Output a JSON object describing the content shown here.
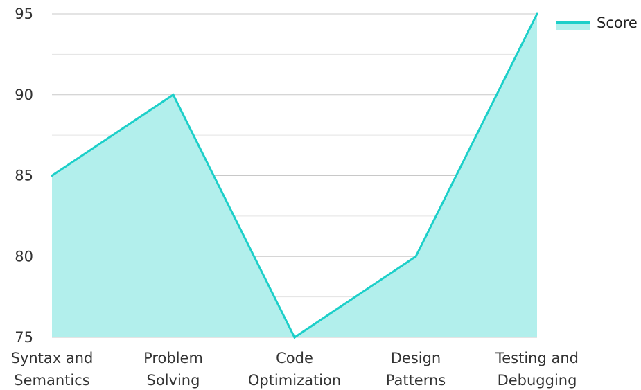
{
  "chart_data": {
    "type": "area",
    "categories": [
      [
        "Syntax and",
        "Semantics"
      ],
      [
        "Problem",
        "Solving"
      ],
      [
        "Code",
        "Optimization"
      ],
      [
        "Design",
        "Patterns"
      ],
      [
        "Testing and",
        "Debugging"
      ]
    ],
    "series": [
      {
        "name": "Score",
        "values": [
          85,
          90,
          75,
          80,
          95
        ]
      }
    ],
    "ylim": [
      75,
      95
    ],
    "yticks": [
      75,
      80,
      85,
      90,
      95
    ],
    "minor_grid": [
      77.5,
      82.5,
      87.5,
      92.5
    ],
    "grid": true,
    "legend": "top-right",
    "colors": {
      "line": "#1ccfc9",
      "fill": "#b2efec",
      "grid": "#c8c8c8",
      "minor_grid": "#e3e3e3"
    }
  }
}
